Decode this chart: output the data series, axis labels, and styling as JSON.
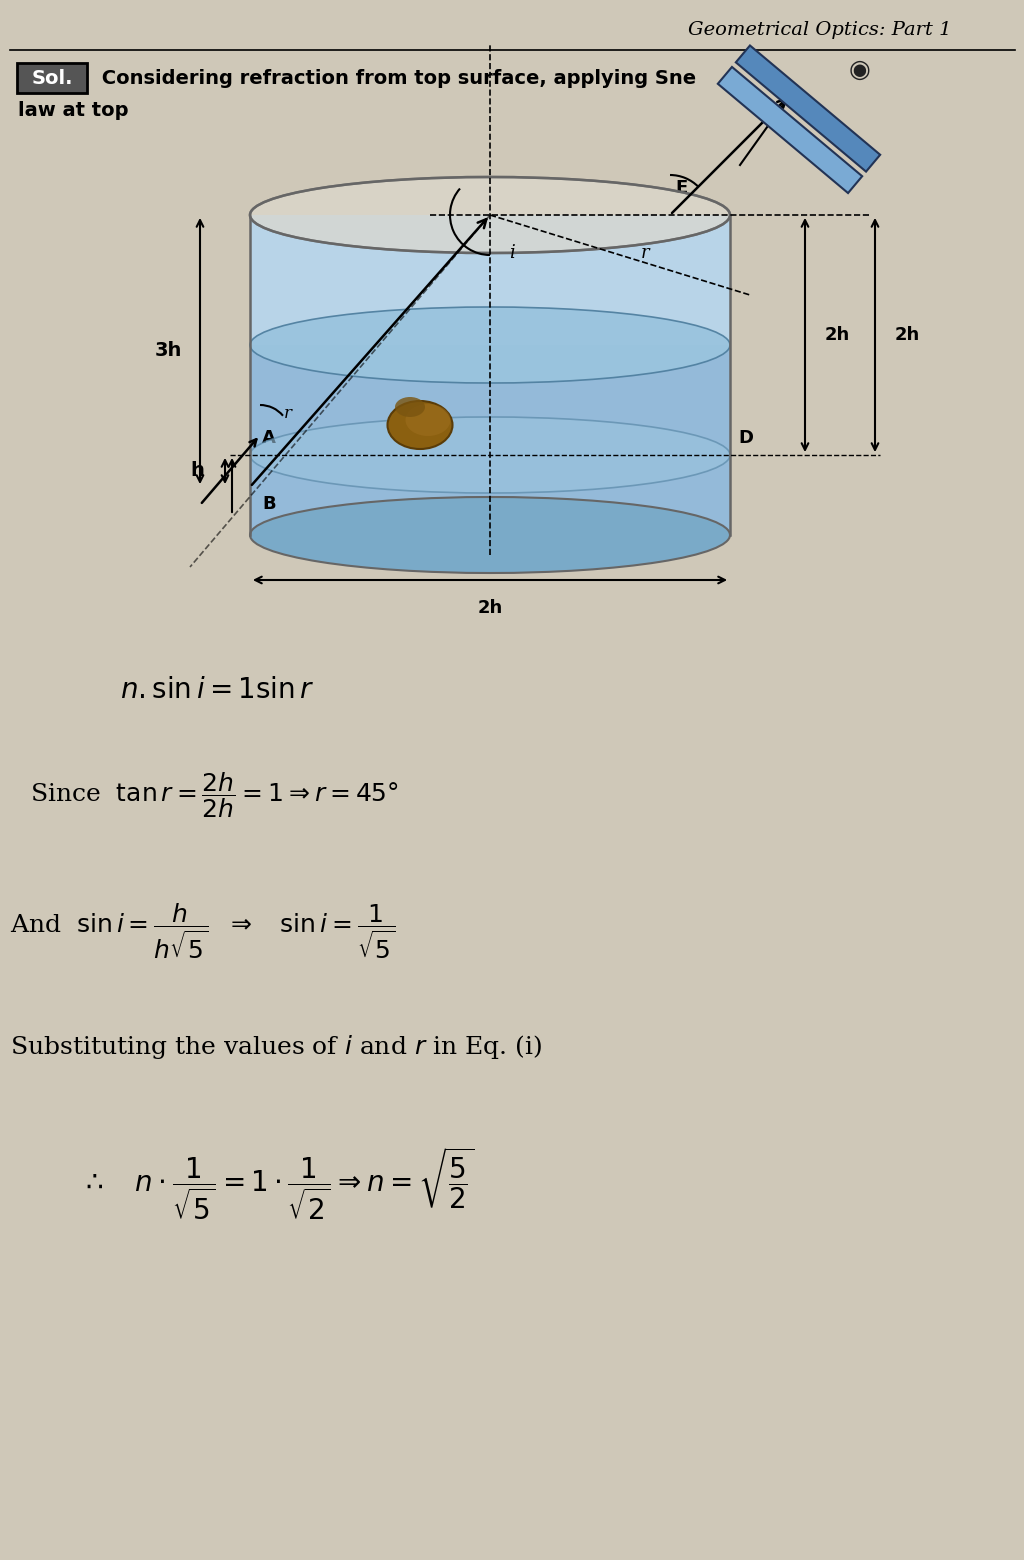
{
  "header": "Geometrical Optics: Part 1",
  "sol_text": "Sol.",
  "intro_text": " Considering refraction from top surface, applying Sne",
  "intro_text2": "law at top",
  "bg_color": "#cfc8b8",
  "cylinder_fill": "#b8d4e8",
  "cylinder_edge": "#666666",
  "water_fill": "#90b8d8",
  "water_edge": "#5080a0"
}
